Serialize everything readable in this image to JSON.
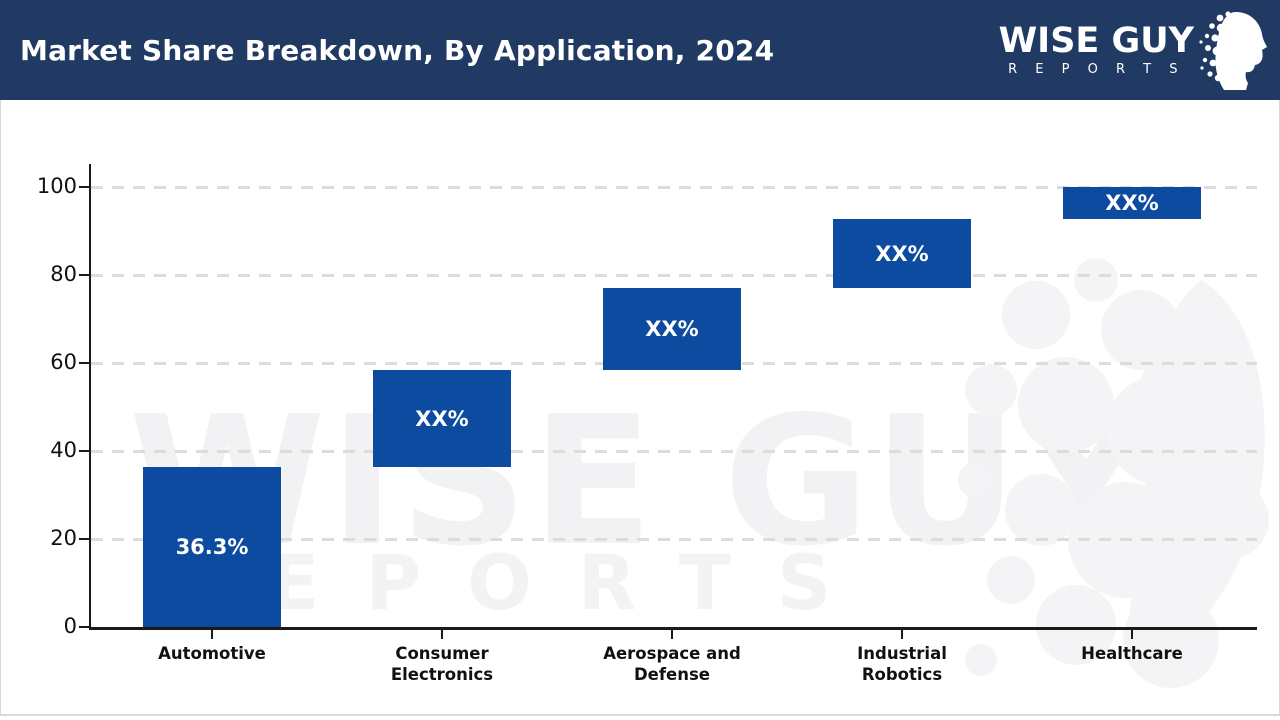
{
  "header": {
    "title": "Market Share Breakdown, By Application, 2024",
    "logo_line1": "WISE GUY",
    "logo_line2": "R E P O R T S"
  },
  "watermark": {
    "line1": "WISE GUY",
    "line2": "REPORTS"
  },
  "colors": {
    "header_bg": "#213a64",
    "bar": "#0c4ba0",
    "bar_label": "#ffffff",
    "gridline": "#dcdcdc",
    "axis": "#1a1a1a",
    "watermark": "#f2f2f5"
  },
  "chart_data": {
    "type": "bar",
    "subtype": "waterfall",
    "title": "Market Share Breakdown, By Application, 2024",
    "categories": [
      "Automotive",
      "Consumer Electronics",
      "Aerospace and Defense",
      "Industrial Robotics",
      "Healthcare"
    ],
    "segments": [
      {
        "category": "Automotive",
        "start": 0,
        "end": 36.3,
        "label": "36.3%"
      },
      {
        "category": "Consumer Electronics",
        "start": 36.3,
        "end": 58.3,
        "label": "XX%"
      },
      {
        "category": "Aerospace and Defense",
        "start": 58.3,
        "end": 77.0,
        "label": "XX%"
      },
      {
        "category": "Industrial Robotics",
        "start": 77.0,
        "end": 92.7,
        "label": "XX%"
      },
      {
        "category": "Healthcare",
        "start": 92.7,
        "end": 100.0,
        "label": "XX%"
      }
    ],
    "yticks": [
      0,
      20,
      40,
      60,
      80,
      100
    ],
    "ylim": [
      0,
      105
    ],
    "xlabel": "",
    "ylabel": "",
    "grid": "horizontal-dashed",
    "legend": "none"
  }
}
